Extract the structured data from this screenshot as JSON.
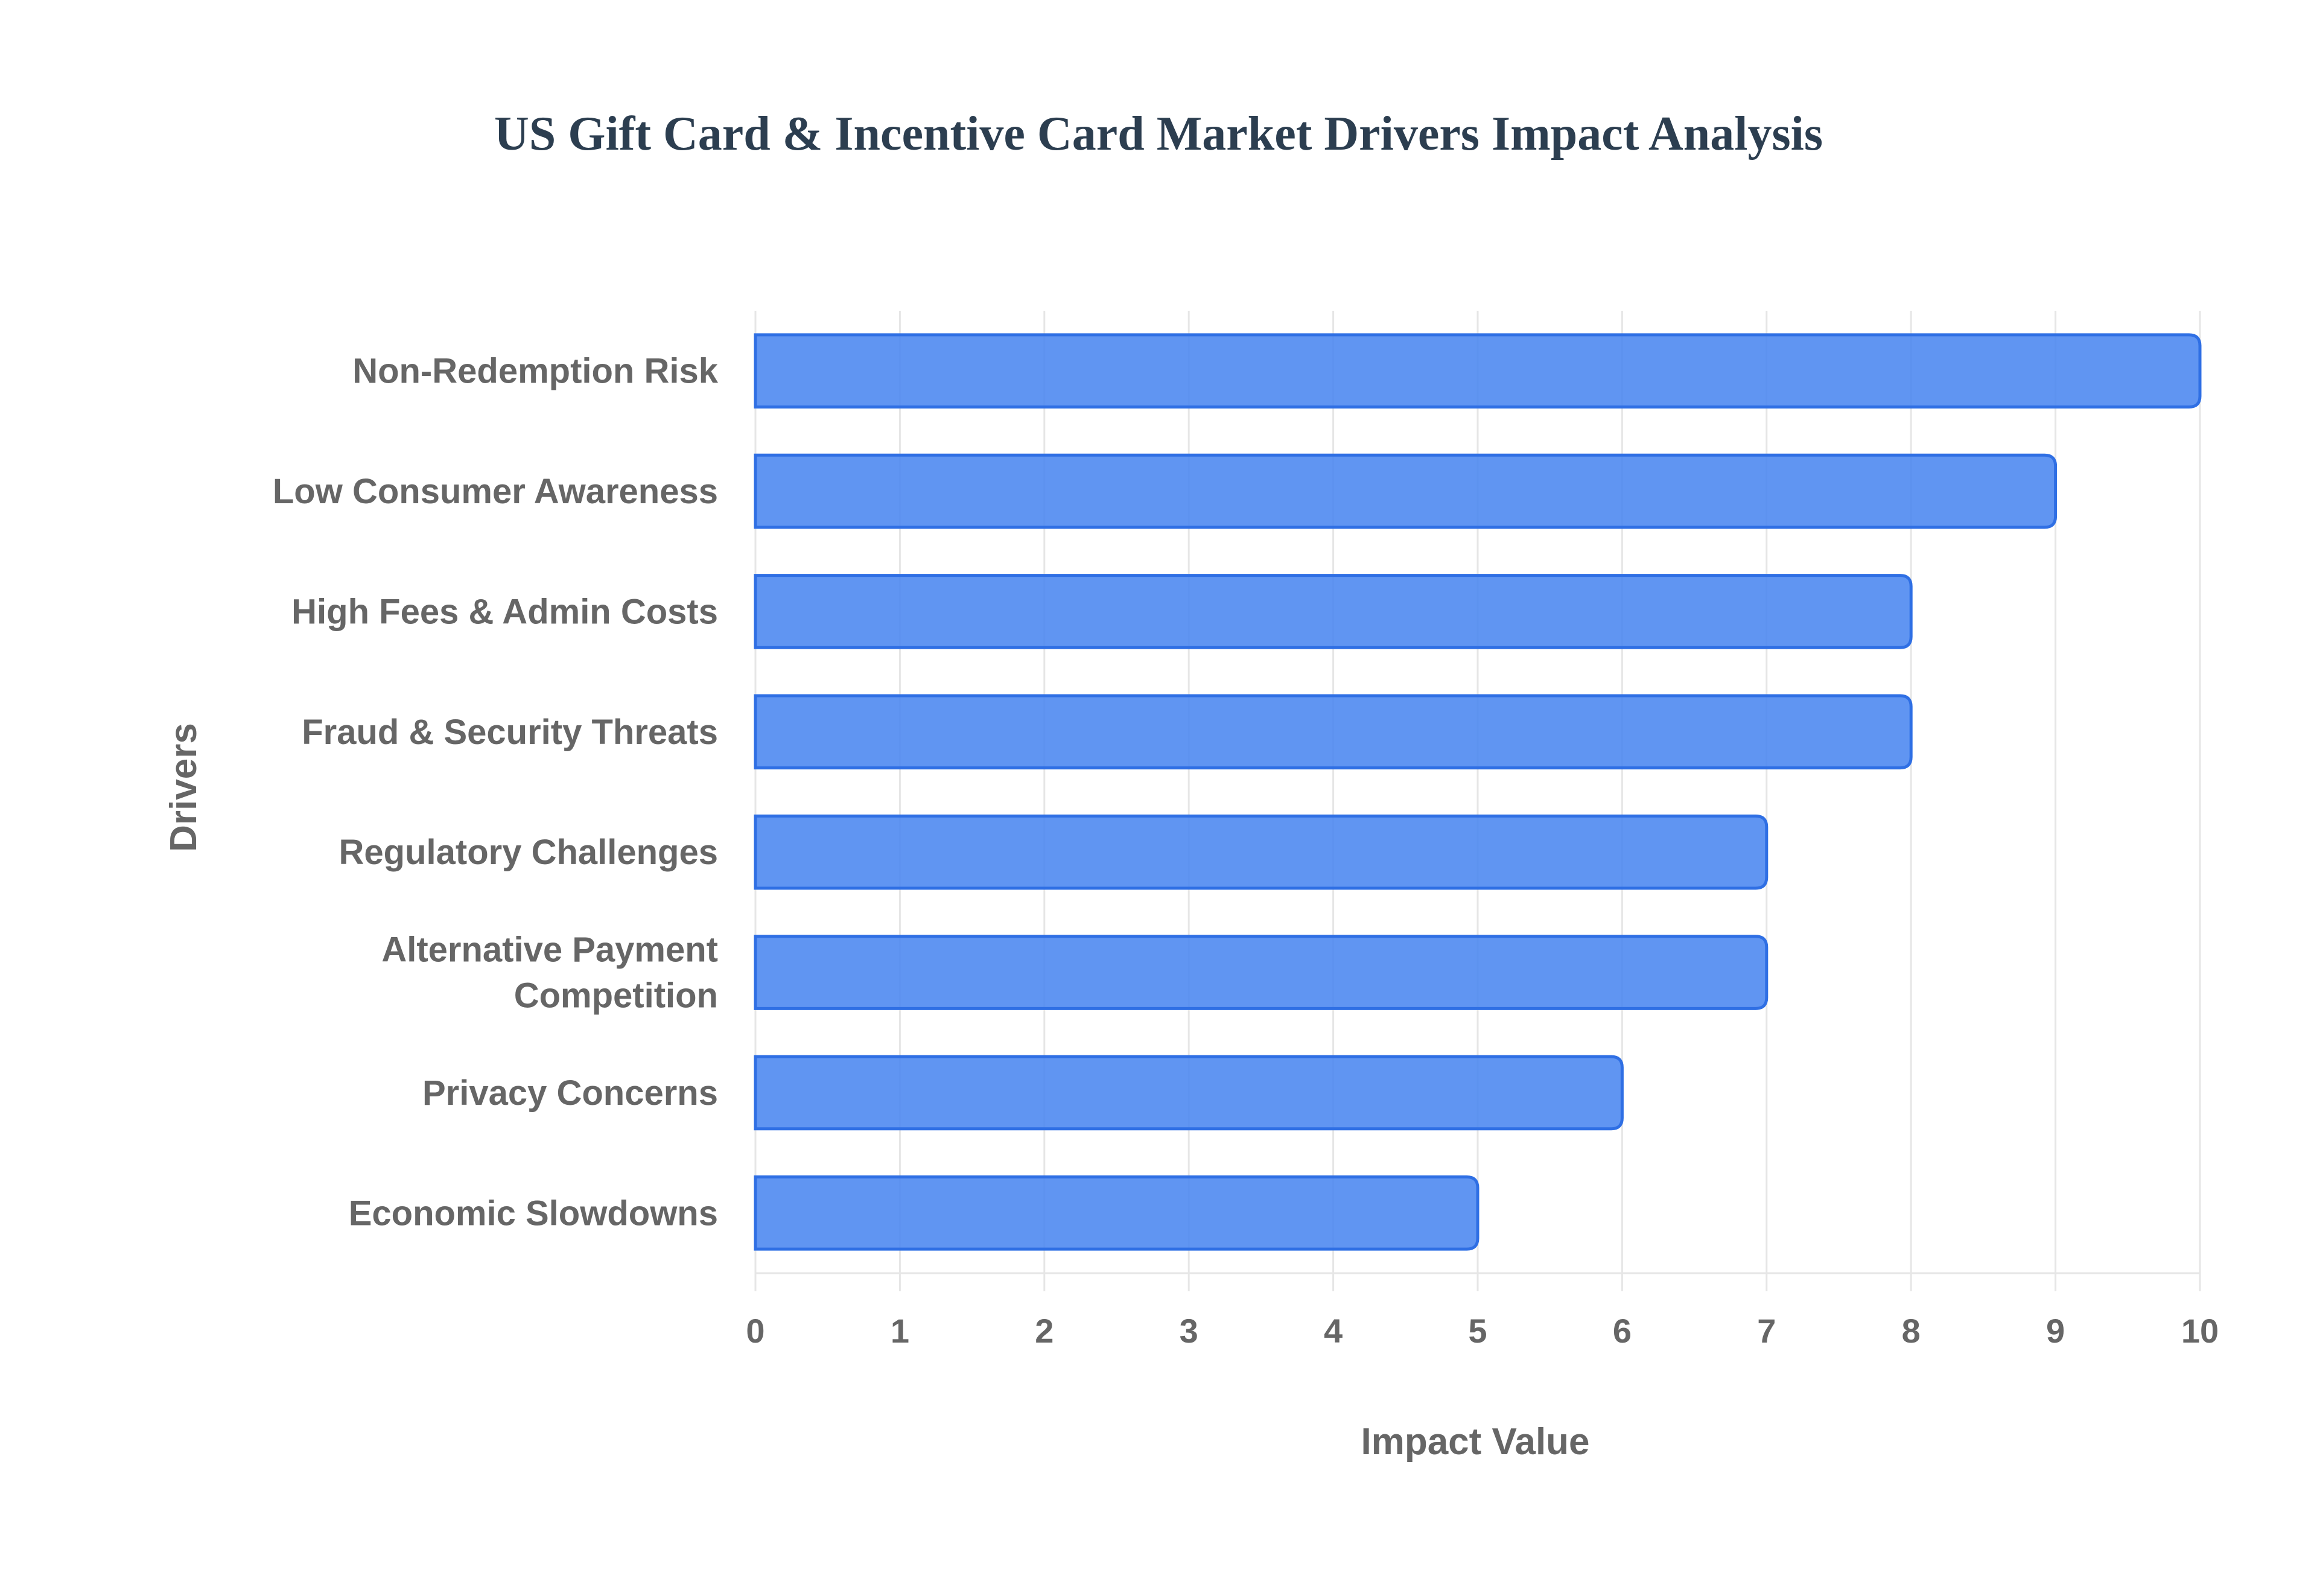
{
  "chart_data": {
    "type": "bar",
    "orientation": "horizontal",
    "title": "US Gift Card & Incentive Card Market Drivers Impact Analysis",
    "xlabel": "Impact Value",
    "ylabel": "Drivers",
    "categories": [
      "Non-Redemption Risk",
      "Low Consumer Awareness",
      "High Fees & Admin Costs",
      "Fraud & Security Threats",
      "Regulatory Challenges",
      "Alternative Payment Competition",
      "Privacy Concerns",
      "Economic Slowdowns"
    ],
    "values": [
      10,
      9,
      8,
      8,
      7,
      7,
      6,
      5
    ],
    "xlim": [
      0,
      10
    ],
    "xticks": [
      "0",
      "1",
      "2",
      "3",
      "4",
      "5",
      "6",
      "7",
      "8",
      "9",
      "10"
    ],
    "grid": true,
    "legend": "none",
    "colors": {
      "bar_fill": "#4a86f0",
      "bar_stroke": "#2f6fe4",
      "title": "#2c3e50",
      "text": "#666666",
      "grid": "#e6e6e6"
    }
  }
}
